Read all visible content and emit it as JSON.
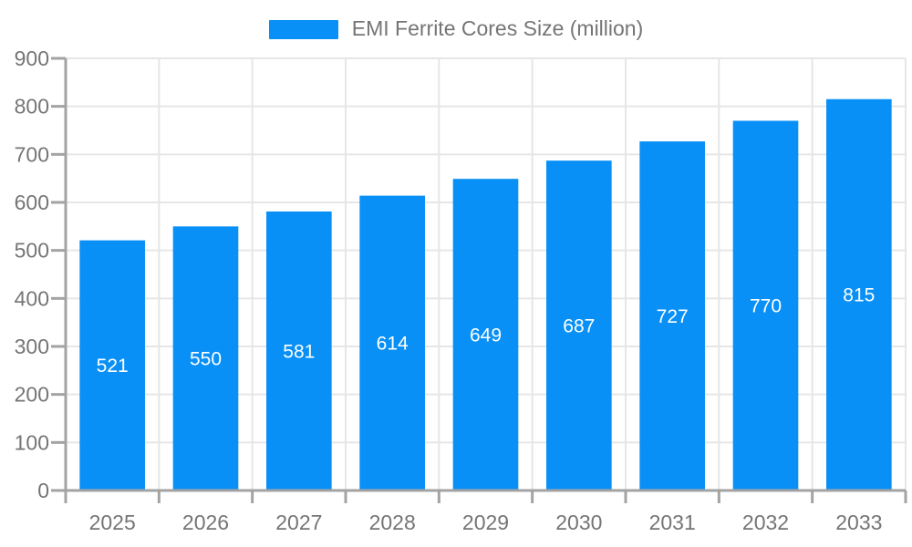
{
  "chart_data": {
    "type": "bar",
    "title": "EMI Ferrite Cores Size (million)",
    "categories": [
      "2025",
      "2026",
      "2027",
      "2028",
      "2029",
      "2030",
      "2031",
      "2032",
      "2033"
    ],
    "values": [
      521,
      550,
      581,
      614,
      649,
      687,
      727,
      770,
      815
    ],
    "xlabel": "",
    "ylabel": "",
    "ylim": [
      0,
      900
    ],
    "ytick_interval": 100,
    "yticks": [
      0,
      100,
      200,
      300,
      400,
      500,
      600,
      700,
      800,
      900
    ],
    "grid": true,
    "legend_position": "top",
    "legend_entries": [
      "EMI Ferrite Cores Size (million)"
    ],
    "data_labels": "inside-center-white",
    "colors": {
      "bar": "#0890f6",
      "bar_label_text": "#ffffff",
      "axis_text": "#757575",
      "axis_line": "#a3a3a3",
      "gridline": "#e6e6e6",
      "background": "#ffffff"
    }
  }
}
